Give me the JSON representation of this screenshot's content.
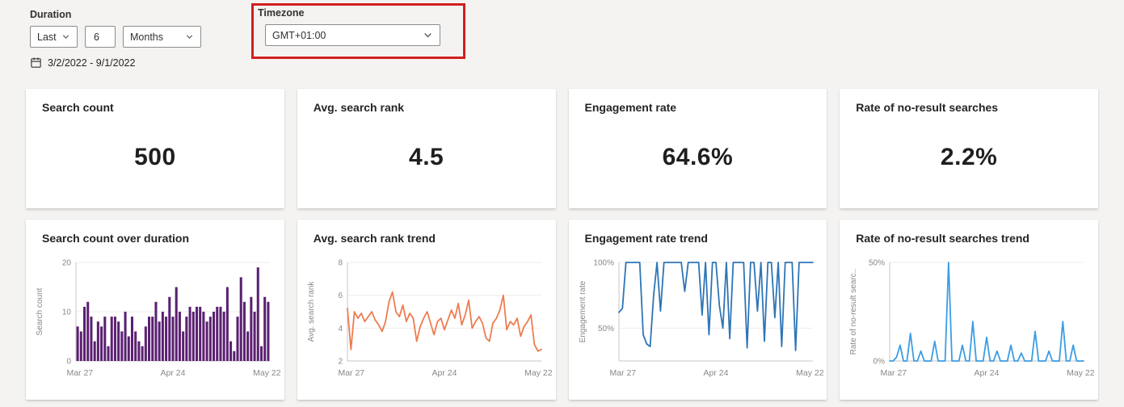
{
  "filters": {
    "duration": {
      "label": "Duration",
      "last_dropdown": "Last",
      "count_value": "6",
      "unit_dropdown": "Months",
      "date_range": "3/2/2022 - 9/1/2022"
    },
    "timezone": {
      "label": "Timezone",
      "value": "GMT+01:00",
      "highlight_color": "#d21f1f"
    }
  },
  "kpi_cards": [
    {
      "title": "Search count",
      "value": "500"
    },
    {
      "title": "Avg. search rank",
      "value": "4.5"
    },
    {
      "title": "Engagement rate",
      "value": "64.6%"
    },
    {
      "title": "Rate of no-result searches",
      "value": "2.2%"
    }
  ],
  "chart_data": [
    {
      "type": "bar",
      "title": "Search count over duration",
      "ylabel": "Search count",
      "color": "#5b2071",
      "ylim": [
        0,
        20
      ],
      "yticks": [
        0,
        10,
        20
      ],
      "yformat": "",
      "xticks": [
        {
          "label": "Mar 27",
          "pos": 0.02
        },
        {
          "label": "Apr 24",
          "pos": 0.5
        },
        {
          "label": "May 22",
          "pos": 0.985
        }
      ],
      "values": [
        7,
        6,
        11,
        12,
        9,
        4,
        8,
        7,
        9,
        3,
        9,
        9,
        8,
        6,
        10,
        5,
        9,
        6,
        4,
        3,
        7,
        9,
        9,
        12,
        8,
        10,
        9,
        13,
        9,
        15,
        10,
        6,
        9,
        11,
        10,
        11,
        11,
        10,
        8,
        9,
        10,
        11,
        11,
        10,
        15,
        4,
        2,
        9,
        17,
        12,
        6,
        13,
        10,
        19,
        3,
        13,
        12
      ]
    },
    {
      "type": "line",
      "title": "Avg. search rank trend",
      "ylabel": "Avg. search rank",
      "color": "#ee7c50",
      "ylim": [
        2,
        8
      ],
      "yticks": [
        2,
        4,
        6,
        8
      ],
      "yformat": "",
      "xticks": [
        {
          "label": "Mar 27",
          "pos": 0.02
        },
        {
          "label": "Apr 24",
          "pos": 0.5
        },
        {
          "label": "May 22",
          "pos": 0.985
        }
      ],
      "values": [
        5.2,
        2.7,
        5.0,
        4.6,
        4.9,
        4.4,
        4.7,
        5.0,
        4.5,
        4.2,
        3.8,
        4.4,
        5.6,
        6.2,
        5.0,
        4.7,
        5.4,
        4.4,
        4.9,
        4.6,
        3.2,
        4.1,
        4.6,
        5.0,
        4.3,
        3.6,
        4.4,
        4.6,
        3.9,
        4.5,
        5.1,
        4.6,
        5.5,
        4.2,
        4.8,
        5.7,
        4.0,
        4.4,
        4.7,
        4.3,
        3.4,
        3.2,
        4.3,
        4.6,
        5.1,
        6.0,
        3.9,
        4.4,
        4.2,
        4.6,
        3.5,
        4.1,
        4.4,
        4.8,
        3.0,
        2.6,
        2.7
      ]
    },
    {
      "type": "line",
      "title": "Engagement rate trend",
      "ylabel": "Engagement rate",
      "color": "#2e75b6",
      "ylim": [
        25,
        100
      ],
      "yticks": [
        50,
        100
      ],
      "yformat": "%",
      "xticks": [
        {
          "label": "Mar 27",
          "pos": 0.02
        },
        {
          "label": "Apr 24",
          "pos": 0.5
        },
        {
          "label": "May 22",
          "pos": 0.985
        }
      ],
      "values": [
        62,
        65,
        100,
        100,
        100,
        100,
        100,
        45,
        38,
        36,
        75,
        100,
        63,
        100,
        100,
        100,
        100,
        100,
        100,
        78,
        100,
        100,
        100,
        100,
        60,
        100,
        45,
        100,
        100,
        67,
        50,
        100,
        42,
        100,
        100,
        100,
        100,
        35,
        100,
        100,
        63,
        100,
        40,
        100,
        100,
        58,
        100,
        36,
        100,
        100,
        100,
        33,
        100,
        100,
        100,
        100,
        100
      ]
    },
    {
      "type": "line",
      "title": "Rate of no-result searches trend",
      "ylabel": "Rate of no-result searc..",
      "color": "#3b9de4",
      "ylim": [
        0,
        50
      ],
      "yticks": [
        0,
        50
      ],
      "yformat": "%",
      "xticks": [
        {
          "label": "Mar 27",
          "pos": 0.02
        },
        {
          "label": "Apr 24",
          "pos": 0.5
        },
        {
          "label": "May 22",
          "pos": 0.985
        }
      ],
      "values": [
        0,
        0,
        2,
        8,
        0,
        0,
        14,
        0,
        0,
        5,
        0,
        0,
        0,
        10,
        0,
        0,
        0,
        50,
        0,
        0,
        0,
        8,
        0,
        0,
        20,
        0,
        0,
        0,
        12,
        0,
        0,
        5,
        0,
        0,
        0,
        8,
        0,
        0,
        4,
        0,
        0,
        0,
        15,
        0,
        0,
        0,
        5,
        0,
        0,
        0,
        20,
        0,
        0,
        8,
        0,
        0,
        0
      ]
    }
  ]
}
